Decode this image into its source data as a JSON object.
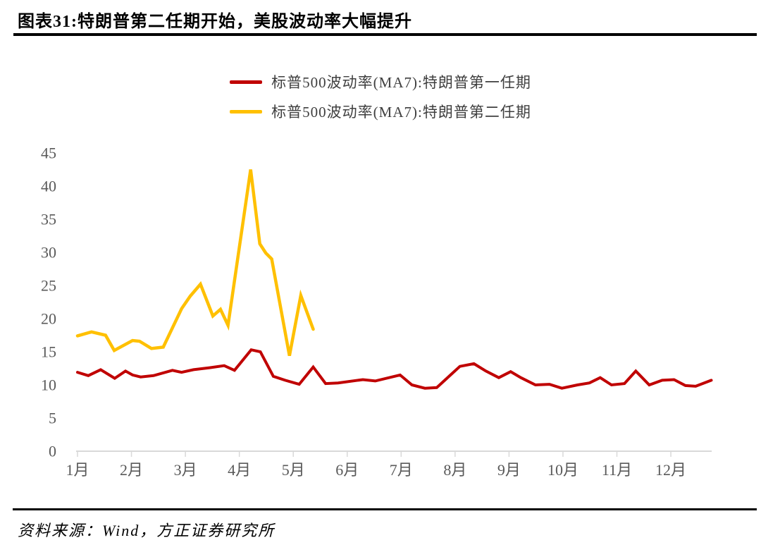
{
  "page": {
    "title": "图表31:特朗普第二任期开始，美股波动率大幅提升",
    "source": "资料来源：Wind，方正证券研究所"
  },
  "colors": {
    "first_term_line": "#c00000",
    "second_term_line": "#ffc000",
    "axis_text": "#595959",
    "axis_line": "#d9d9d9",
    "legend_text": "#3f3f3f",
    "rule": "#000000"
  },
  "chart_data": {
    "type": "line",
    "title": "图表31:特朗普第二任期开始，美股波动率大幅提升",
    "xlabel": "",
    "ylabel": "",
    "x_axis": {
      "categories": [
        "1月",
        "2月",
        "3月",
        "4月",
        "5月",
        "6月",
        "7月",
        "8月",
        "9月",
        "10月",
        "11月",
        "12月"
      ],
      "unit": "month_of_term_year",
      "range_months": [
        0,
        11.75
      ],
      "gridlines": false
    },
    "y_axis": {
      "ticks": [
        0,
        5,
        10,
        15,
        20,
        25,
        30,
        35,
        40,
        45
      ],
      "range": [
        0,
        45
      ],
      "gridlines": false
    },
    "legend_position": "top-center",
    "series": [
      {
        "name": "标普500波动率(MA7):特朗普第一任期",
        "color": "#c00000",
        "points": [
          [
            0.0,
            11.9
          ],
          [
            0.2,
            11.4
          ],
          [
            0.43,
            12.3
          ],
          [
            0.69,
            11.0
          ],
          [
            0.89,
            12.1
          ],
          [
            1.02,
            11.5
          ],
          [
            1.17,
            11.2
          ],
          [
            1.41,
            11.4
          ],
          [
            1.76,
            12.2
          ],
          [
            1.93,
            11.9
          ],
          [
            2.15,
            12.3
          ],
          [
            2.45,
            12.6
          ],
          [
            2.72,
            12.9
          ],
          [
            2.91,
            12.2
          ],
          [
            3.22,
            15.3
          ],
          [
            3.39,
            15.0
          ],
          [
            3.63,
            11.3
          ],
          [
            3.85,
            10.7
          ],
          [
            4.11,
            10.1
          ],
          [
            4.37,
            12.7
          ],
          [
            4.6,
            10.2
          ],
          [
            4.83,
            10.3
          ],
          [
            5.29,
            10.8
          ],
          [
            5.52,
            10.6
          ],
          [
            5.98,
            11.5
          ],
          [
            6.2,
            10.0
          ],
          [
            6.44,
            9.5
          ],
          [
            6.66,
            9.6
          ],
          [
            7.09,
            12.8
          ],
          [
            7.35,
            13.2
          ],
          [
            7.57,
            12.1
          ],
          [
            7.81,
            11.1
          ],
          [
            8.03,
            12.0
          ],
          [
            8.22,
            11.1
          ],
          [
            8.49,
            10.0
          ],
          [
            8.75,
            10.1
          ],
          [
            8.98,
            9.5
          ],
          [
            9.27,
            10.0
          ],
          [
            9.49,
            10.3
          ],
          [
            9.69,
            11.1
          ],
          [
            9.9,
            10.0
          ],
          [
            10.14,
            10.2
          ],
          [
            10.35,
            12.1
          ],
          [
            10.6,
            10.0
          ],
          [
            10.84,
            10.7
          ],
          [
            11.06,
            10.8
          ],
          [
            11.27,
            9.9
          ],
          [
            11.46,
            9.8
          ],
          [
            11.75,
            10.7
          ]
        ]
      },
      {
        "name": "标普500波动率(MA7):特朗普第二任期",
        "color": "#ffc000",
        "points": [
          [
            0.0,
            17.4
          ],
          [
            0.26,
            18.0
          ],
          [
            0.52,
            17.5
          ],
          [
            0.68,
            15.2
          ],
          [
            1.02,
            16.7
          ],
          [
            1.15,
            16.6
          ],
          [
            1.37,
            15.5
          ],
          [
            1.59,
            15.7
          ],
          [
            1.93,
            21.5
          ],
          [
            2.09,
            23.4
          ],
          [
            2.28,
            25.2
          ],
          [
            2.51,
            20.4
          ],
          [
            2.65,
            21.4
          ],
          [
            2.79,
            19.0
          ],
          [
            3.21,
            42.5
          ],
          [
            3.38,
            31.3
          ],
          [
            3.49,
            29.9
          ],
          [
            3.6,
            29.0
          ],
          [
            3.93,
            14.4
          ],
          [
            4.14,
            23.5
          ],
          [
            4.37,
            18.4
          ]
        ]
      }
    ]
  }
}
